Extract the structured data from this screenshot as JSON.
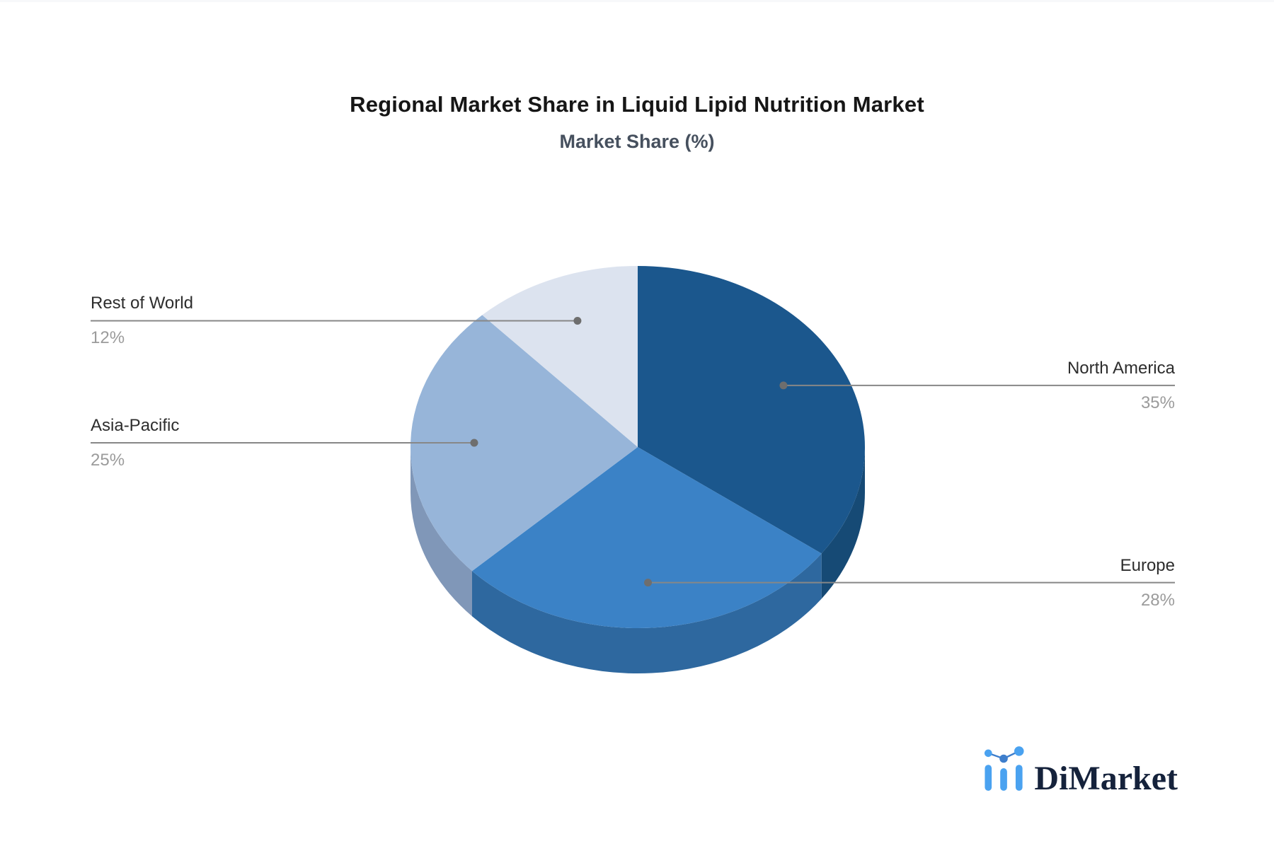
{
  "header": {
    "title": "Regional Market Share in Liquid Lipid Nutrition Market",
    "subtitle": "Market Share (%)"
  },
  "chart_data": {
    "type": "pie",
    "style": "3d",
    "title": "Regional Market Share in Liquid Lipid Nutrition Market",
    "subtitle": "Market Share (%)",
    "unit": "%",
    "start_angle_deg": 90,
    "direction": "clockwise",
    "legend": "none",
    "label_style": "leader-lines",
    "slices": [
      {
        "name": "North America",
        "value": 35,
        "display": "35%",
        "color": "#1B578D",
        "side_color": "#164A75",
        "label_side": "right"
      },
      {
        "name": "Europe",
        "value": 28,
        "display": "28%",
        "color": "#3B82C6",
        "side_color": "#2E689F",
        "label_side": "right"
      },
      {
        "name": "Asia-Pacific",
        "value": 25,
        "display": "25%",
        "color": "#97B5D9",
        "side_color": "#8097B8",
        "label_side": "left"
      },
      {
        "name": "Rest of World",
        "value": 12,
        "display": "12%",
        "color": "#DCE3EF",
        "side_color": "#B8C2D4",
        "label_side": "left"
      }
    ]
  },
  "branding": {
    "logo_text": "DiMarket",
    "logo_icon": "bar-line-chart-icon",
    "icon_bar_color": "#4AA2F0",
    "icon_line_color": "#3E7ECC",
    "text_color": "#15223B"
  },
  "colors": {
    "title": "#161616",
    "subtitle": "#46505E",
    "label_name": "#2D2D2D",
    "label_value": "#9B9B9B",
    "leader_line": "#878787",
    "leader_dot": "#6E6E6E",
    "background": "#FFFFFF"
  }
}
